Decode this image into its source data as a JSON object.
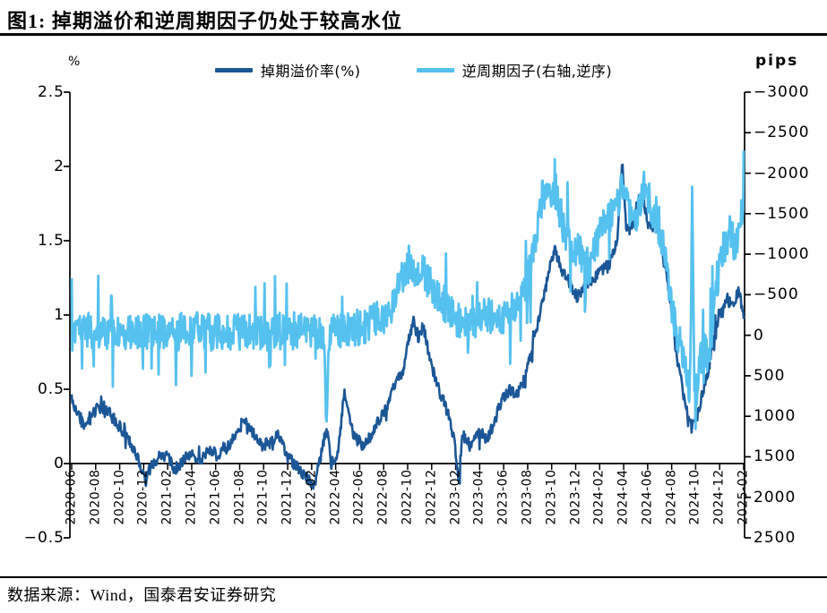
{
  "title": "图1:  掉期溢价和逆周期因子仍处于较高水位",
  "source": "数据来源：Wind，国泰君安证券研究",
  "chart_data": {
    "type": "line",
    "title": "掉期溢价和逆周期因子仍处于较高水位",
    "legend_position": "top-center",
    "grid": false,
    "left_axis": {
      "label": "%",
      "min": -0.5,
      "max": 2.5,
      "tick_values": [
        2.5,
        2,
        1.5,
        1,
        0.5,
        0,
        -0.5
      ],
      "tick_labels": [
        "2.5",
        "2",
        "1.5",
        "1",
        "0.5",
        "0",
        "−0.5"
      ]
    },
    "right_axis": {
      "label": "pips",
      "reversed": true,
      "top_value": -3000,
      "bottom_value": 2500,
      "tick_values": [
        -3000,
        -2500,
        -2000,
        -1500,
        -1000,
        -500,
        0,
        500,
        1000,
        1500,
        2000,
        2500
      ],
      "tick_labels": [
        "−3000",
        "−2500",
        "−2000",
        "−1500",
        "−1000",
        "−500",
        "0",
        "500",
        "1000",
        "1500",
        "2000",
        "2500"
      ]
    },
    "x_axis": {
      "start": "2020-06",
      "end": "2025-02",
      "tick_labels": [
        "2020-06",
        "2020-08",
        "2020-10",
        "2020-12",
        "2021-02",
        "2021-04",
        "2021-06",
        "2021-08",
        "2021-10",
        "2021-12",
        "2022-02",
        "2022-04",
        "2022-06",
        "2022-08",
        "2022-10",
        "2022-12",
        "2023-02",
        "2023-04",
        "2023-06",
        "2023-08",
        "2023-10",
        "2023-12",
        "2024-02",
        "2024-04",
        "2024-06",
        "2024-08",
        "2024-10",
        "2024-12",
        "2025-02"
      ]
    },
    "points_count": 1160,
    "month_span": 56.2,
    "series": [
      {
        "name": "掉期溢价率(%)",
        "axis": "left",
        "color": "#1B5796",
        "width": 2.6,
        "z": 1,
        "seed": 3,
        "noise_amp": 0.04,
        "spike_chance": 0.06,
        "spike_mult": 2.6,
        "clamp": [
          -0.45,
          2.4
        ],
        "keypoints": [
          [
            0,
            0.42
          ],
          [
            0.7,
            0.3
          ],
          [
            1.2,
            0.25
          ],
          [
            2,
            0.36
          ],
          [
            2.8,
            0.38
          ],
          [
            3.5,
            0.3
          ],
          [
            4.3,
            0.22
          ],
          [
            5,
            0.12
          ],
          [
            5.6,
            0.02
          ],
          [
            6.2,
            -0.13
          ],
          [
            6.6,
            -0.02
          ],
          [
            7.2,
            0.04
          ],
          [
            8,
            0.06
          ],
          [
            8.6,
            -0.04
          ],
          [
            9.3,
            0.02
          ],
          [
            10,
            0.07
          ],
          [
            10.8,
            0.02
          ],
          [
            11.5,
            0.1
          ],
          [
            12.2,
            0.05
          ],
          [
            13,
            0.1
          ],
          [
            13.8,
            0.2
          ],
          [
            14.3,
            0.28
          ],
          [
            15,
            0.23
          ],
          [
            16,
            0.12
          ],
          [
            16.8,
            0.15
          ],
          [
            17.3,
            0.2
          ],
          [
            18,
            0.05
          ],
          [
            19,
            -0.04
          ],
          [
            19.8,
            -0.1
          ],
          [
            20.3,
            -0.15
          ],
          [
            20.9,
            0.08
          ],
          [
            21.3,
            0.25
          ],
          [
            21.7,
            0
          ],
          [
            22.3,
            0.08
          ],
          [
            22.8,
            0.48
          ],
          [
            23.2,
            0.32
          ],
          [
            23.6,
            0.18
          ],
          [
            24.3,
            0.13
          ],
          [
            25,
            0.18
          ],
          [
            25.6,
            0.28
          ],
          [
            26.3,
            0.38
          ],
          [
            27,
            0.52
          ],
          [
            27.7,
            0.62
          ],
          [
            28.3,
            0.88
          ],
          [
            28.6,
            0.97
          ],
          [
            29,
            0.82
          ],
          [
            29.4,
            0.93
          ],
          [
            30,
            0.68
          ],
          [
            30.7,
            0.5
          ],
          [
            31.3,
            0.38
          ],
          [
            32,
            0.17
          ],
          [
            32.35,
            -0.14
          ],
          [
            32.7,
            0.2
          ],
          [
            33.3,
            0.12
          ],
          [
            34,
            0.2
          ],
          [
            34.7,
            0.16
          ],
          [
            35.3,
            0.27
          ],
          [
            36,
            0.44
          ],
          [
            36.7,
            0.5
          ],
          [
            37.3,
            0.46
          ],
          [
            38,
            0.6
          ],
          [
            38.7,
            0.85
          ],
          [
            39.3,
            1.05
          ],
          [
            40,
            1.32
          ],
          [
            40.4,
            1.43
          ],
          [
            41,
            1.3
          ],
          [
            41.6,
            1.22
          ],
          [
            42.3,
            1.12
          ],
          [
            43,
            1.2
          ],
          [
            43.7,
            1.25
          ],
          [
            44.3,
            1.3
          ],
          [
            45,
            1.35
          ],
          [
            45.6,
            1.5
          ],
          [
            46.05,
            2.05
          ],
          [
            46.4,
            1.55
          ],
          [
            47,
            1.62
          ],
          [
            47.8,
            1.8
          ],
          [
            48.2,
            1.58
          ],
          [
            48.8,
            1.65
          ],
          [
            49.3,
            1.5
          ],
          [
            50,
            1.15
          ],
          [
            50.6,
            0.72
          ],
          [
            51.2,
            0.45
          ],
          [
            51.8,
            0.25
          ],
          [
            52.3,
            0.32
          ],
          [
            52.8,
            0.48
          ],
          [
            53.3,
            0.65
          ],
          [
            53.8,
            0.9
          ],
          [
            54.3,
            1.02
          ],
          [
            54.8,
            1.12
          ],
          [
            55.3,
            1.05
          ],
          [
            55.8,
            1.18
          ],
          [
            56.2,
            1.0
          ]
        ]
      },
      {
        "name": "逆周期因子(右轴,逆序)",
        "axis": "right",
        "color": "#55C1EF",
        "width": 2.8,
        "z": 2,
        "seed": 7,
        "noise_amp": 230,
        "spike_chance": 0.07,
        "spike_mult": 3.0,
        "clamp": [
          -2880,
          2400
        ],
        "keypoints": [
          [
            0,
            -30
          ],
          [
            2,
            -60
          ],
          [
            4,
            -20
          ],
          [
            6,
            -60
          ],
          [
            8,
            -30
          ],
          [
            10,
            -60
          ],
          [
            12,
            -30
          ],
          [
            14,
            -60
          ],
          [
            16,
            -30
          ],
          [
            18,
            -60
          ],
          [
            20,
            -40
          ],
          [
            21.1,
            -30
          ],
          [
            21.3,
            1050
          ],
          [
            21.55,
            -30
          ],
          [
            22,
            -100
          ],
          [
            23,
            -60
          ],
          [
            24,
            -100
          ],
          [
            25,
            -150
          ],
          [
            26,
            -220
          ],
          [
            27,
            -420
          ],
          [
            27.8,
            -750
          ],
          [
            28.4,
            -820
          ],
          [
            28.8,
            -700
          ],
          [
            29.3,
            -800
          ],
          [
            29.8,
            -650
          ],
          [
            30.5,
            -500
          ],
          [
            31.2,
            -400
          ],
          [
            32,
            -180
          ],
          [
            33,
            -120
          ],
          [
            34,
            -180
          ],
          [
            35,
            -250
          ],
          [
            36,
            -180
          ],
          [
            37,
            -350
          ],
          [
            38,
            -600
          ],
          [
            38.8,
            -1100
          ],
          [
            39.4,
            -1750
          ],
          [
            40,
            -1650
          ],
          [
            40.5,
            -1800
          ],
          [
            41,
            -1400
          ],
          [
            41.8,
            -1100
          ],
          [
            42.5,
            -1000
          ],
          [
            43.3,
            -850
          ],
          [
            44,
            -1200
          ],
          [
            44.8,
            -1400
          ],
          [
            45.5,
            -1500
          ],
          [
            46.1,
            -1900
          ],
          [
            46.6,
            -1500
          ],
          [
            47.2,
            -1450
          ],
          [
            47.9,
            -1850
          ],
          [
            48.4,
            -1600
          ],
          [
            49,
            -1450
          ],
          [
            49.6,
            -1000
          ],
          [
            50.2,
            -300
          ],
          [
            50.7,
            0
          ],
          [
            51.2,
            300
          ],
          [
            51.7,
            700
          ],
          [
            51.9,
            -1800
          ],
          [
            52.1,
            800
          ],
          [
            52.4,
            500
          ],
          [
            52.8,
            100
          ],
          [
            53.2,
            300
          ],
          [
            53.6,
            -200
          ],
          [
            54,
            -700
          ],
          [
            54.5,
            -1000
          ],
          [
            55,
            -1250
          ],
          [
            55.5,
            -1100
          ],
          [
            56.2,
            -1600
          ]
        ]
      }
    ]
  }
}
